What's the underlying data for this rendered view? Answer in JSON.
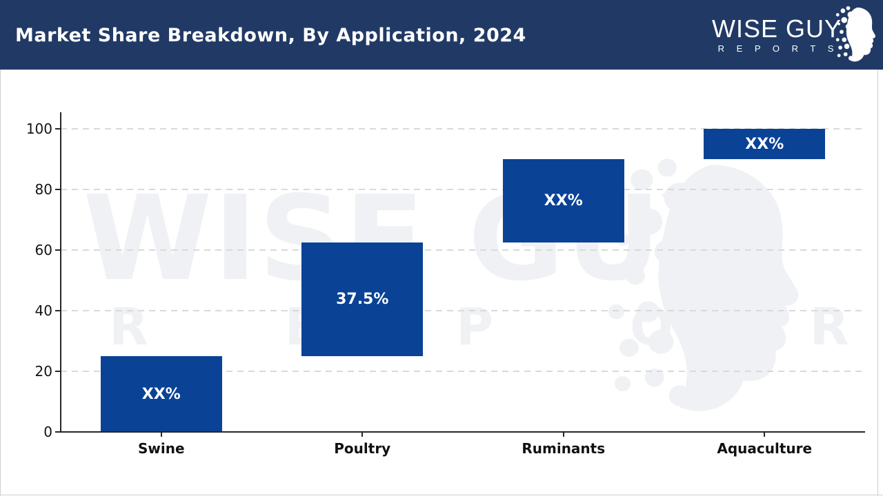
{
  "header": {
    "title": "Market Share Breakdown, By Application, 2024",
    "logo": {
      "line1": "WISE GUY",
      "line2": "R E P O R T S"
    }
  },
  "watermark": {
    "line1": "WISE GUY",
    "line2": "R E P O R T S"
  },
  "colors": {
    "header_bg": "#213a65",
    "bar_blue": "#0a4296",
    "axis": "#262626",
    "grid": "#d9d9d9",
    "watermark": "#f0f1f4",
    "title_text": "#ffffff",
    "bar_label_text": "#ffffff"
  },
  "chart_data": {
    "type": "bar",
    "variant": "floating-column-waterfall",
    "title": "Market Share Breakdown, By Application, 2024",
    "categories": [
      "Swine",
      "Poultry",
      "Ruminants",
      "Aquaculture"
    ],
    "series": [
      {
        "name": "Market Share (%)",
        "ranges": [
          [
            0,
            25
          ],
          [
            25,
            62.5
          ],
          [
            62.5,
            90
          ],
          [
            90,
            100
          ]
        ],
        "segment_sizes": [
          25,
          37.5,
          27.5,
          10
        ],
        "labels": [
          "XX%",
          "37.5%",
          "XX%",
          "XX%"
        ]
      }
    ],
    "xlabel": "",
    "ylabel": "",
    "ylim": [
      0,
      100
    ],
    "yticks": [
      0,
      20,
      40,
      60,
      80,
      100
    ],
    "grid": "dashed-horizontal",
    "legend": "none"
  }
}
